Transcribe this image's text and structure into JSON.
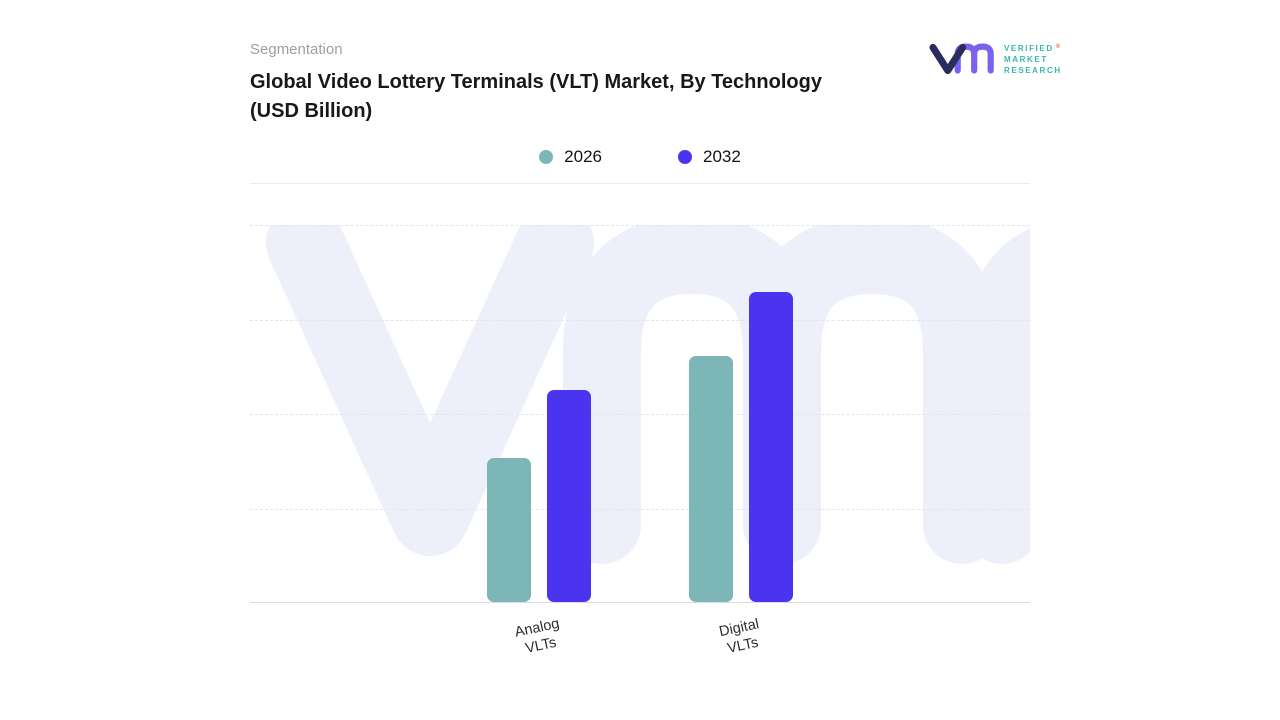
{
  "brand": {
    "logo_text_lines": [
      "VERIFIED",
      "MARKET",
      "RESEARCH"
    ],
    "registered_mark": "®",
    "glyph_v_color": "#2a2d5b",
    "glyph_m_color": "#7b61f0",
    "text_color": "#39b7ab"
  },
  "header": {
    "eyebrow": "Segmentation",
    "title_line1": "Global Video Lottery Terminals (VLT) Market, By Technology",
    "title_line2": "(USD Billion)"
  },
  "chart_data": {
    "type": "bar",
    "title": "Global Video Lottery Terminals (VLT) Market, By Technology (USD Billion)",
    "categories": [
      "Analog VLTs",
      "Digital VLTs"
    ],
    "categories_display": [
      "Analog\nVLTs",
      "Digital\nVLTs"
    ],
    "series": [
      {
        "name": "2026",
        "color": "#7cb6b7",
        "values": [
          38,
          65
        ]
      },
      {
        "name": "2032",
        "color": "#4b34f0",
        "values": [
          56,
          82
        ]
      }
    ],
    "xlabel": "",
    "ylabel": "USD Billion",
    "ylim": [
      0,
      100
    ],
    "grid": "horizontal-dashed",
    "legend_position": "top-center",
    "value_axis_labels_visible": false,
    "watermark_color": "#edeffb"
  }
}
